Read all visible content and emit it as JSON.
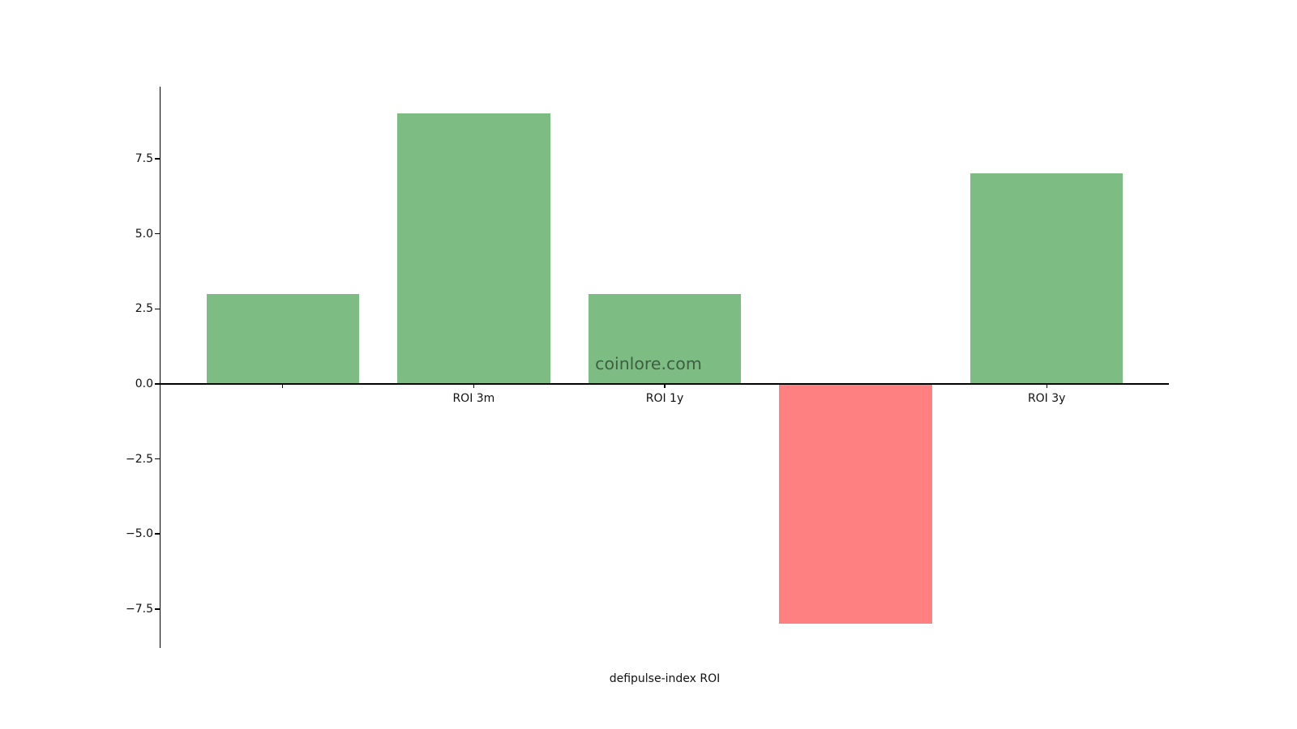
{
  "figure": {
    "background": "#ffffff",
    "axis_color": "#000000",
    "text_color": "#111111"
  },
  "watermark": {
    "text": "coinlore.com"
  },
  "chart_data": {
    "type": "bar",
    "title": "defipulse-index ROI",
    "xlabel": "defipulse-index ROI",
    "ylabel": "",
    "categories": [
      "",
      "ROI 3m",
      "ROI 1y",
      "",
      "ROI 3y"
    ],
    "values": [
      3,
      9,
      3,
      -8,
      7
    ],
    "bar_colors": [
      "#7dbd83",
      "#7dbd83",
      "#7dbd83",
      "#fe8080",
      "#7dbd83"
    ],
    "positive_color": "#7dbd83",
    "negative_color": "#fe8080",
    "yticks": [
      7.5,
      5.0,
      2.5,
      0.0,
      -2.5,
      -5.0,
      -7.5
    ],
    "ytick_labels": [
      "7.5",
      "5.0",
      "2.5",
      "0.0",
      "−2.5",
      "−5.0",
      "−7.5"
    ],
    "ylim": [
      -8.8,
      9.9
    ],
    "grid": false,
    "legend": "none",
    "notes": "watermark coinlore.com centered on figure; x tick label of 4th (negative) bar hidden behind the bar"
  }
}
